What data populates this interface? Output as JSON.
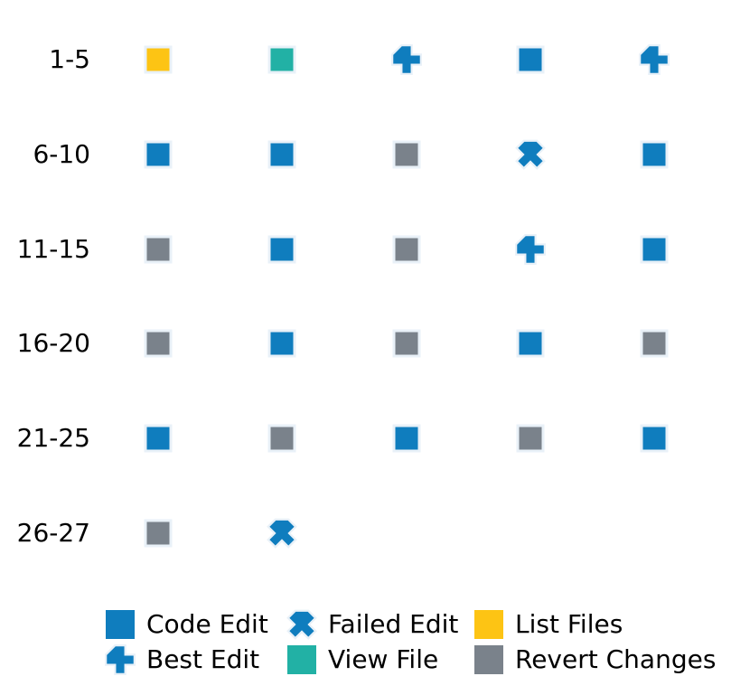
{
  "chart_data": {
    "type": "scatter",
    "description": "Grid of action markers per step range with categorical legend",
    "background": "#ffffff",
    "text_color": "#000000",
    "marker_edge_color": "#e9f1f8",
    "row_labels": [
      "1-5",
      "6-10",
      "11-15",
      "16-20",
      "21-25",
      "26-27"
    ],
    "grid": [
      [
        "list_files",
        "view_file",
        "best_edit",
        "code_edit",
        "best_edit"
      ],
      [
        "code_edit",
        "code_edit",
        "revert_changes",
        "failed_edit",
        "code_edit"
      ],
      [
        "revert_changes",
        "code_edit",
        "revert_changes",
        "best_edit",
        "code_edit"
      ],
      [
        "revert_changes",
        "code_edit",
        "revert_changes",
        "code_edit",
        "revert_changes"
      ],
      [
        "code_edit",
        "revert_changes",
        "code_edit",
        "revert_changes",
        "code_edit"
      ],
      [
        "revert_changes",
        "failed_edit",
        null,
        null,
        null
      ]
    ],
    "markers": {
      "code_edit": {
        "label": "Code Edit",
        "shape": "square",
        "color": "#0f7dbe"
      },
      "failed_edit": {
        "label": "Failed Edit",
        "shape": "x",
        "color": "#0f7dbe"
      },
      "list_files": {
        "label": "List Files",
        "shape": "square",
        "color": "#fdc414"
      },
      "best_edit": {
        "label": "Best Edit",
        "shape": "plus",
        "color": "#0f7dbe"
      },
      "view_file": {
        "label": "View File",
        "shape": "square",
        "color": "#22b1a5"
      },
      "revert_changes": {
        "label": "Revert Changes",
        "shape": "square",
        "color": "#7a828b"
      }
    },
    "legend_rows": [
      [
        "code_edit",
        "failed_edit",
        "list_files"
      ],
      [
        "best_edit",
        "view_file",
        "revert_changes"
      ]
    ],
    "legend_position": "bottom",
    "grid_lines": false,
    "axes_lines": false
  }
}
